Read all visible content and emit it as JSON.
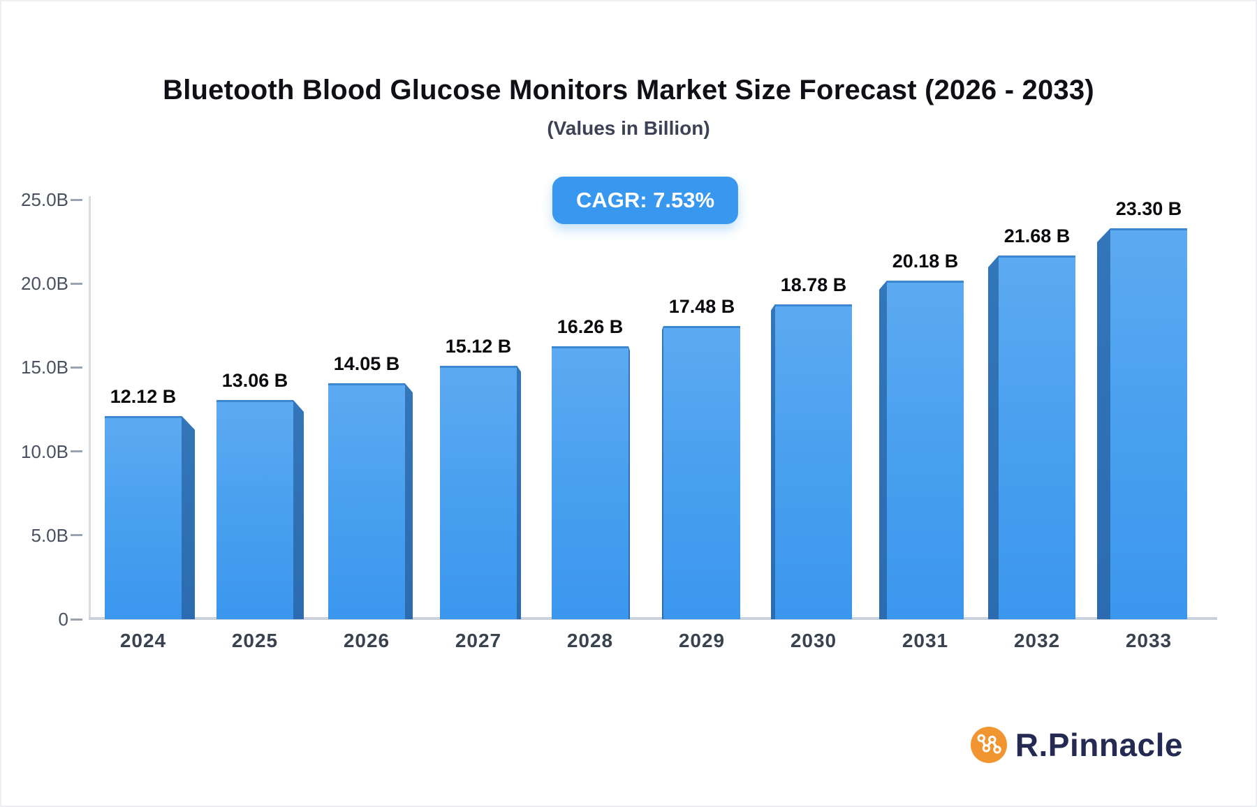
{
  "header": {
    "title": "Bluetooth Blood Glucose Monitors Market Size Forecast (2026 - 2033)",
    "subtitle": "(Values in Billion)"
  },
  "badge": {
    "label": "CAGR: 7.53%",
    "bg_color": "#3898EF",
    "text_color": "#ffffff"
  },
  "chart_data": {
    "type": "bar",
    "title": "Bluetooth Blood Glucose Monitors Market Size Forecast (2026 - 2033)",
    "subtitle": "(Values in Billion)",
    "categories": [
      "2024",
      "2025",
      "2026",
      "2027",
      "2028",
      "2029",
      "2030",
      "2031",
      "2032",
      "2033"
    ],
    "values": [
      12.12,
      13.06,
      14.05,
      15.12,
      16.26,
      17.48,
      18.78,
      20.18,
      21.68,
      23.3
    ],
    "value_labels": [
      "12.12 B",
      "13.06 B",
      "14.05 B",
      "15.12 B",
      "16.26 B",
      "17.48 B",
      "18.78 B",
      "20.18 B",
      "21.68 B",
      "23.30 B"
    ],
    "xlabel": "",
    "ylabel": "",
    "ylim": [
      0,
      25
    ],
    "yticks": [
      {
        "label": "25.0B",
        "value": 25
      },
      {
        "label": "20.0B",
        "value": 20
      },
      {
        "label": "15.0B",
        "value": 15
      },
      {
        "label": "10.0B",
        "value": 10
      },
      {
        "label": "5.0B",
        "value": 5
      },
      {
        "label": "0",
        "value": 0
      }
    ],
    "grid": false,
    "legend": false,
    "bar_face_color": "#4AA0EF",
    "bar_side_color": "#2E6FB3",
    "style": "3d-perspective-bars"
  },
  "branding": {
    "name": "R.Pinnacle",
    "icon": "network-nodes-icon",
    "icon_bg_color": "#F0952F",
    "text_color": "#252A52"
  }
}
